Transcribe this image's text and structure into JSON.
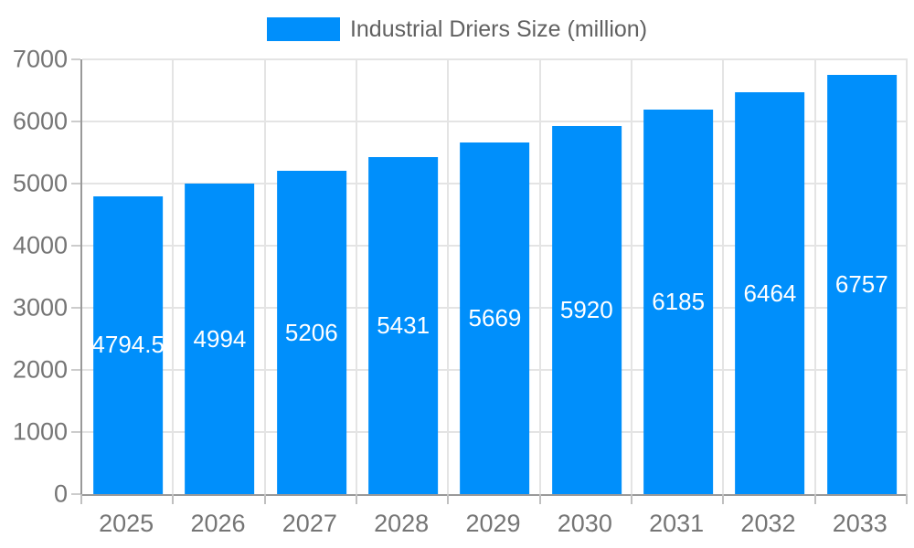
{
  "legend": {
    "label": "Industrial Driers Size (million)"
  },
  "colors": {
    "bar": "#008FFB",
    "grid": "#e4e4e4",
    "axis": "#999999",
    "x_tick": "#c0c0c0",
    "y_tick": "#cccccc",
    "axis_label_text": "#757575",
    "legend_text": "#616161",
    "value_label_text": "#ffffff",
    "background": "#ffffff"
  },
  "chart_data": {
    "type": "bar",
    "title": "Industrial Driers Size (million)",
    "categories": [
      "2025",
      "2026",
      "2027",
      "2028",
      "2029",
      "2030",
      "2031",
      "2032",
      "2033"
    ],
    "values": [
      4794.5,
      4994,
      5206,
      5431,
      5669,
      5920,
      6185,
      6464,
      6757
    ],
    "value_labels": [
      "4794.5",
      "4994",
      "5206",
      "5431",
      "5669",
      "5920",
      "6185",
      "6464",
      "6757"
    ],
    "xlabel": "",
    "ylabel": "",
    "ylim": [
      0,
      7000
    ],
    "yticks": [
      0,
      1000,
      2000,
      3000,
      4000,
      5000,
      6000,
      7000
    ],
    "grid": true,
    "legend_position": "top"
  }
}
